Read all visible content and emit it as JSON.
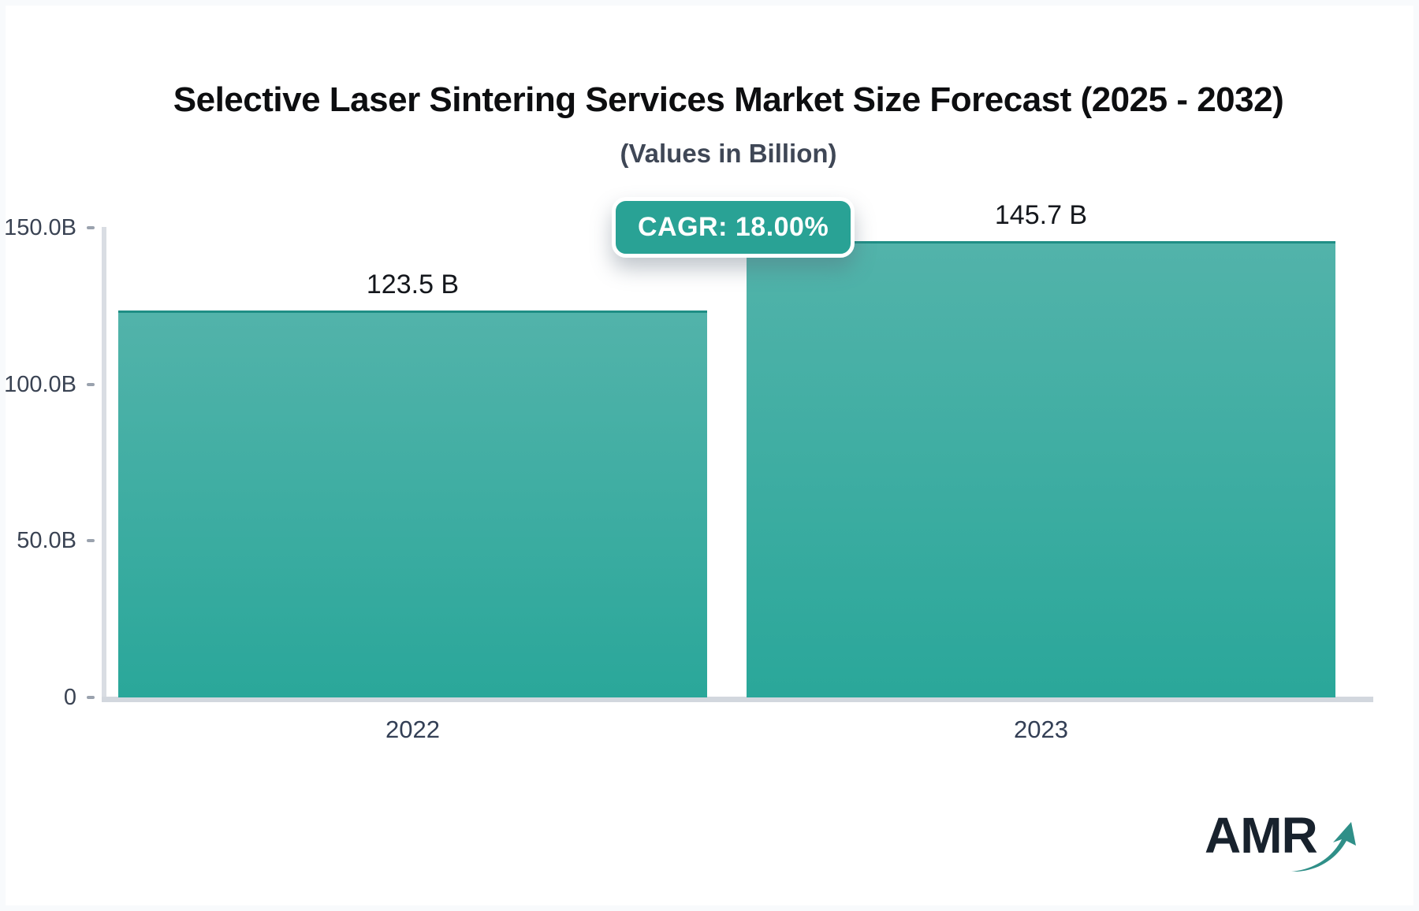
{
  "header": {
    "title": "Selective Laser Sintering Services Market Size Forecast (2025 - 2032)",
    "subtitle": "(Values in Billion)"
  },
  "badge": {
    "label": "CAGR: 18.00%",
    "color": "#29a295"
  },
  "chart_data": {
    "type": "bar",
    "title": "Selective Laser Sintering Services Market Size Forecast (2025 - 2032)",
    "subtitle": "(Values in Billion)",
    "categories": [
      "2022",
      "2023"
    ],
    "values": [
      123.5,
      145.7
    ],
    "value_labels": [
      "123.5 B",
      "145.7 B"
    ],
    "ylim": [
      0,
      150
    ],
    "yticks": {
      "values": [
        150,
        100,
        50,
        0
      ],
      "labels": [
        "150.0B",
        "100.0B",
        "50.0B",
        "0"
      ]
    },
    "grid": false,
    "legend": null,
    "annotation": "CAGR: 18.00%",
    "bar_color_top": "#52b3aa",
    "bar_color_bottom": "#2aa79a",
    "bar_border_color": "#1f8e85"
  },
  "logo": {
    "text": "AMR",
    "arrow_icon": "trend-up-arrow",
    "text_color": "#18222d",
    "arrow_color": "#2f8f88"
  }
}
